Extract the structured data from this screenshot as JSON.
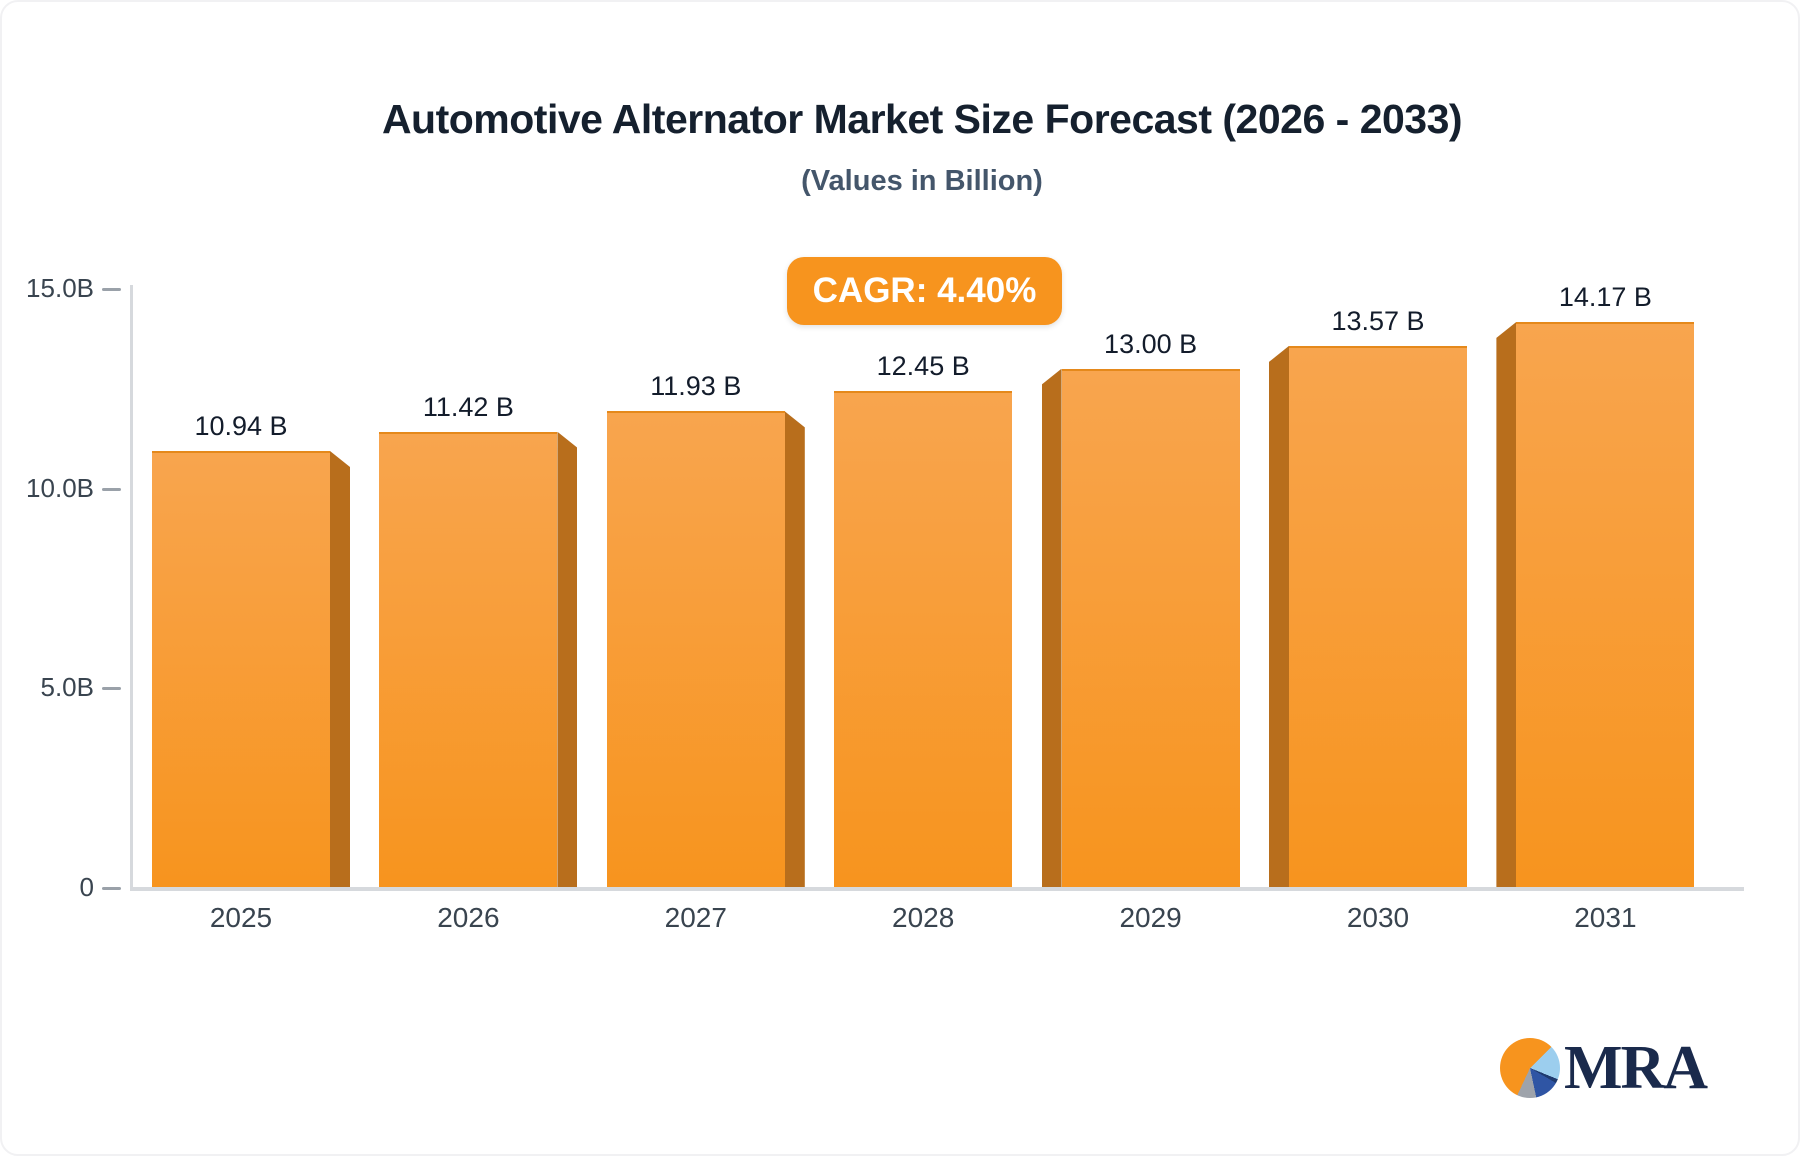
{
  "chart_data": {
    "type": "bar",
    "title": "Automotive Alternator Market Size Forecast (2026 - 2033)",
    "subtitle": "(Values in Billion)",
    "cagr_label": "CAGR: 4.40%",
    "categories": [
      "2025",
      "2026",
      "2027",
      "2028",
      "2029",
      "2030",
      "2031"
    ],
    "values": [
      10.94,
      11.42,
      11.93,
      12.45,
      13.0,
      13.57,
      14.17
    ],
    "value_labels": [
      "10.94 B",
      "11.42 B",
      "11.93 B",
      "12.45 B",
      "13.00 B",
      "13.57 B",
      "14.17 B"
    ],
    "xlabel": "",
    "ylabel": "",
    "ylim": [
      0,
      15
    ],
    "y_ticks": [
      {
        "value": 0,
        "label": "0"
      },
      {
        "value": 5,
        "label": "5.0B"
      },
      {
        "value": 10,
        "label": "10.0B"
      },
      {
        "value": 15,
        "label": "15.0B"
      }
    ],
    "grid": false,
    "legend": false,
    "bar_style": "3d-extruded",
    "colors": {
      "bar_face_top": "#F8A54E",
      "bar_face_bottom": "#F7941E",
      "bar_side": "#B86E1C",
      "badge_bg": "#F7941E",
      "badge_text": "#FFFFFF",
      "title_text": "#15202E",
      "subtitle_text": "#44566B",
      "axis_label": "#39444F",
      "value_label": "#131C2B",
      "axis_line": "#D6D9DD",
      "tick": "#9AA1A9"
    }
  },
  "logo": {
    "text": "MRA",
    "text_color": "#1A2A4C",
    "pie_colors": {
      "orange": "#F7941E",
      "light_blue": "#9CCEEE",
      "navy": "#1F3A6E",
      "dark_blue": "#2F55A4",
      "gray": "#9EA3AB"
    }
  }
}
